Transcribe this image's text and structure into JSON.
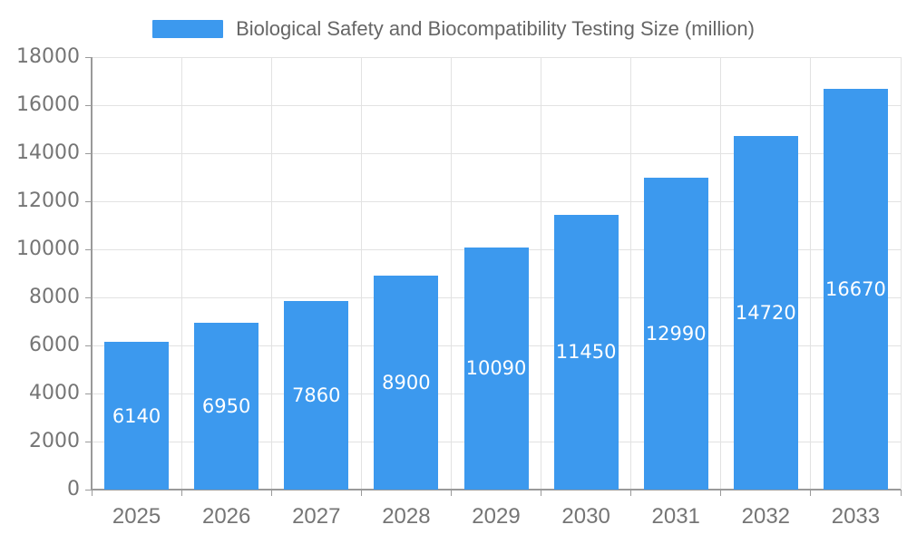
{
  "chart_data": {
    "type": "bar",
    "title": "Biological Safety and Biocompatibility Testing Size (million)",
    "categories": [
      "2025",
      "2026",
      "2027",
      "2028",
      "2029",
      "2030",
      "2031",
      "2032",
      "2033"
    ],
    "values": [
      6140,
      6950,
      7860,
      8900,
      10090,
      11450,
      12990,
      14720,
      16670
    ],
    "series": [
      {
        "name": "Biological Safety and Biocompatibility Testing Size (million)",
        "values": [
          6140,
          6950,
          7860,
          8900,
          10090,
          11450,
          12990,
          14720,
          16670
        ]
      }
    ],
    "xlabel": "",
    "ylabel": "",
    "ylim": [
      0,
      18000
    ],
    "yticks": [
      0,
      2000,
      4000,
      6000,
      8000,
      10000,
      12000,
      14000,
      16000,
      18000
    ],
    "grid": true,
    "legend_position": "top",
    "bar_labels_visible": true,
    "colors": {
      "bar": "#3C99EE",
      "bar_value_label": "#ffffff",
      "grid_line": "#E2E2E2",
      "axis_line": "#9A9A9A",
      "tick_label": "#757575",
      "legend_text": "#666666",
      "background": "#ffffff"
    }
  }
}
